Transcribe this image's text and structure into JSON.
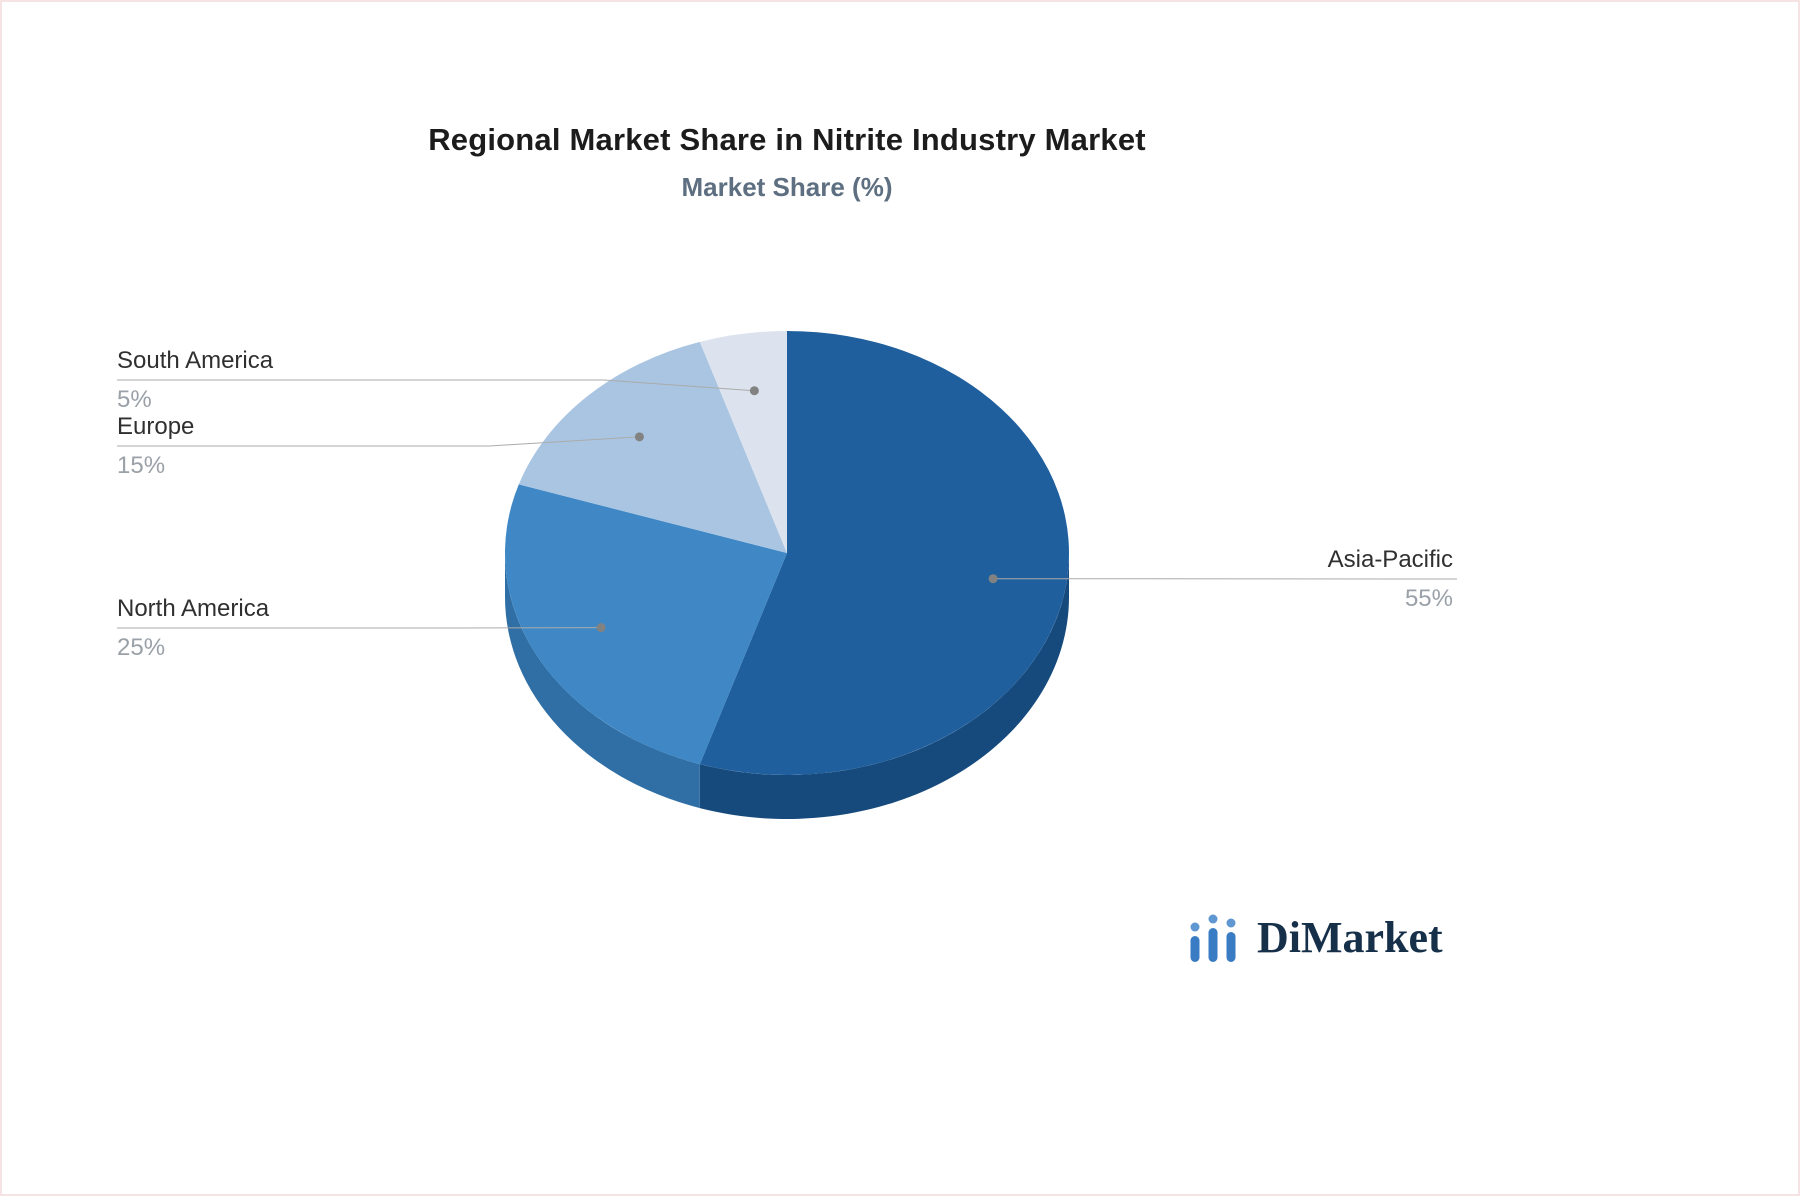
{
  "page": {
    "brand": {
      "name": "DiMarket",
      "icon": "bar-chart-icon",
      "icon_color": "#3a7cc4",
      "text_color": "#17304a"
    }
  },
  "chart_data": {
    "type": "pie",
    "style": "3d",
    "title": "Regional Market Share in Nitrite Industry Market",
    "subtitle": "Market Share (%)",
    "unit": "%",
    "start_angle": "top",
    "direction": "clockwise",
    "legend_position": "none",
    "label_style": "leader-lines",
    "line_color": "#ababab",
    "dot_color": "#828282",
    "slices": [
      {
        "name": "Asia-Pacific",
        "value": 55,
        "pct_label": "55%",
        "color": "#1F5F9E",
        "side_color": "#174A7C",
        "label_side": "right"
      },
      {
        "name": "North America",
        "value": 25,
        "pct_label": "25%",
        "color": "#3F88C5",
        "side_color": "#2F6FA6",
        "label_side": "left"
      },
      {
        "name": "Europe",
        "value": 15,
        "pct_label": "15%",
        "color": "#A9C5E2",
        "side_color": "#8FAFD0",
        "label_side": "left"
      },
      {
        "name": "South America",
        "value": 5,
        "pct_label": "5%",
        "color": "#DCE3EE",
        "side_color": "#C4CEDC",
        "label_side": "left"
      }
    ]
  }
}
